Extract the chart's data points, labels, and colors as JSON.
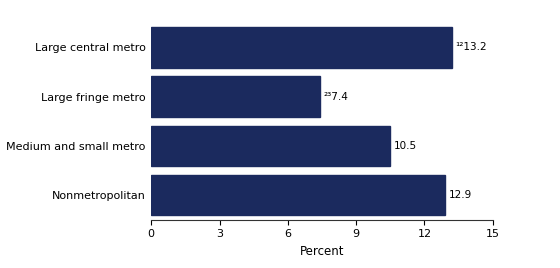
{
  "categories": [
    "Nonmetropolitan",
    "Medium and small metro",
    "Large fringe metro",
    "Large central metro"
  ],
  "values": [
    12.9,
    10.5,
    7.4,
    13.2
  ],
  "bar_color": "#1b2a5e",
  "bar_labels": [
    "12.9",
    "10.5",
    "²³7.4",
    "¹²13.2"
  ],
  "xlabel": "Percent",
  "xlim": [
    0,
    15
  ],
  "xticks": [
    0,
    3,
    6,
    9,
    12,
    15
  ],
  "bar_height": 0.82,
  "label_fontsize": 7.5,
  "tick_fontsize": 8.0,
  "xlabel_fontsize": 8.5,
  "background_color": "#ffffff"
}
